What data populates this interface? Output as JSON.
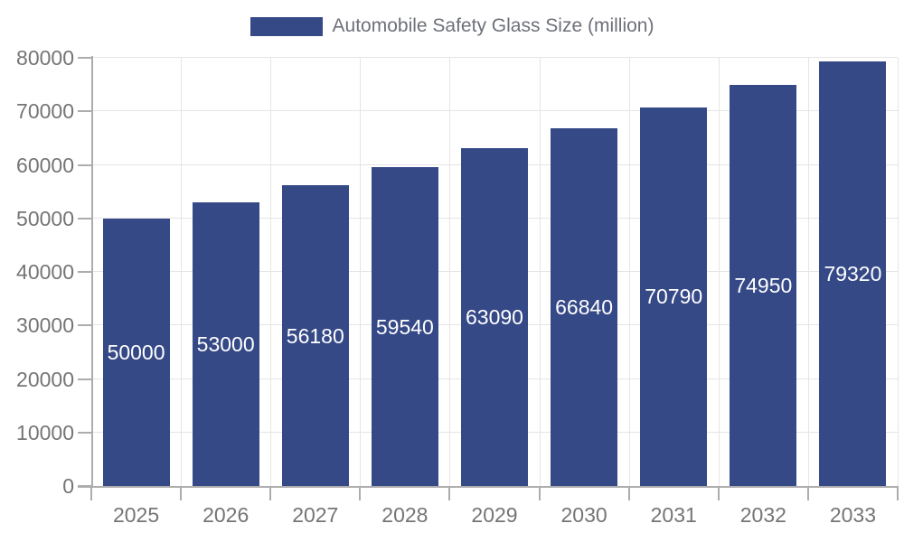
{
  "chart_data": {
    "type": "bar",
    "title": "Automobile Safety Glass Size (million)",
    "legend": [
      "Automobile Safety Glass Size (million)"
    ],
    "legend_position": "top-center",
    "categories": [
      "2025",
      "2026",
      "2027",
      "2028",
      "2029",
      "2030",
      "2031",
      "2032",
      "2033"
    ],
    "series": [
      {
        "name": "Automobile Safety Glass Size (million)",
        "values": [
          50000,
          53000,
          56180,
          59540,
          63090,
          66840,
          70790,
          74950,
          79320
        ]
      }
    ],
    "xlabel": "",
    "ylabel": "",
    "ylim": [
      0,
      80000
    ],
    "y_ticks": [
      0,
      10000,
      20000,
      30000,
      40000,
      50000,
      60000,
      70000,
      80000
    ],
    "grid": true,
    "value_labels": "inside-center",
    "colors": {
      "bar": "#364987",
      "value_label": "#FFFFFF",
      "axis_text": "#757575",
      "legend_text": "#6E7079",
      "axis_line": "#ADADAD",
      "gridline": "#E5E5E5",
      "background": "#FFFFFF"
    }
  }
}
